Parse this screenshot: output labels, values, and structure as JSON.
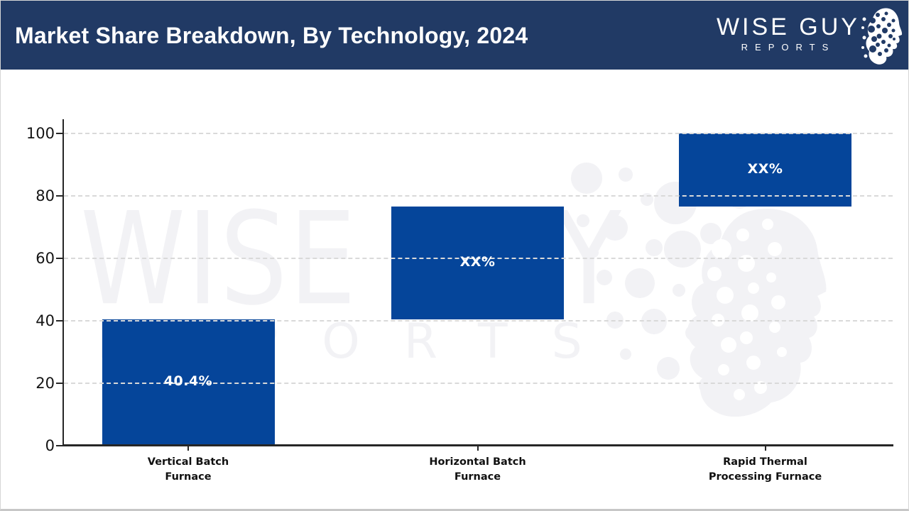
{
  "header": {
    "title": "Market Share Breakdown, By Technology, 2024",
    "logo": {
      "line1": "WISE GUY",
      "line2": "REPORTS"
    }
  },
  "watermark": {
    "line1": "WISE GUY",
    "line2": "REPORTS"
  },
  "colors": {
    "header_bg": "#213a65",
    "bar": "#05459a",
    "bar_label": "#ffffff",
    "grid": "#d9d9d9",
    "axis": "#262626",
    "watermark": "#f2f2f5"
  },
  "chart_data": {
    "type": "bar",
    "subtype": "stacked-waterfall",
    "title": "Market Share Breakdown, By Technology, 2024",
    "categories": [
      [
        "Vertical Batch",
        "Furnace"
      ],
      [
        "Horizontal Batch",
        "Furnace"
      ],
      [
        "Rapid Thermal",
        "Processing Furnace"
      ]
    ],
    "segments": [
      {
        "category": "Vertical Batch Furnace",
        "start": 0,
        "end": 40.4,
        "label": "40.4%"
      },
      {
        "category": "Horizontal Batch Furnace",
        "start": 40.4,
        "end": 76.5,
        "label": "XX%"
      },
      {
        "category": "Rapid Thermal Processing Furnace",
        "start": 76.5,
        "end": 100,
        "label": "XX%"
      }
    ],
    "ylim": [
      0,
      100
    ],
    "yticks": [
      0,
      20,
      40,
      60,
      80,
      100
    ],
    "xlabel": "",
    "ylabel": "",
    "grid": "dashed-horizontal",
    "legend": "none",
    "bar_color": "#05459a"
  }
}
